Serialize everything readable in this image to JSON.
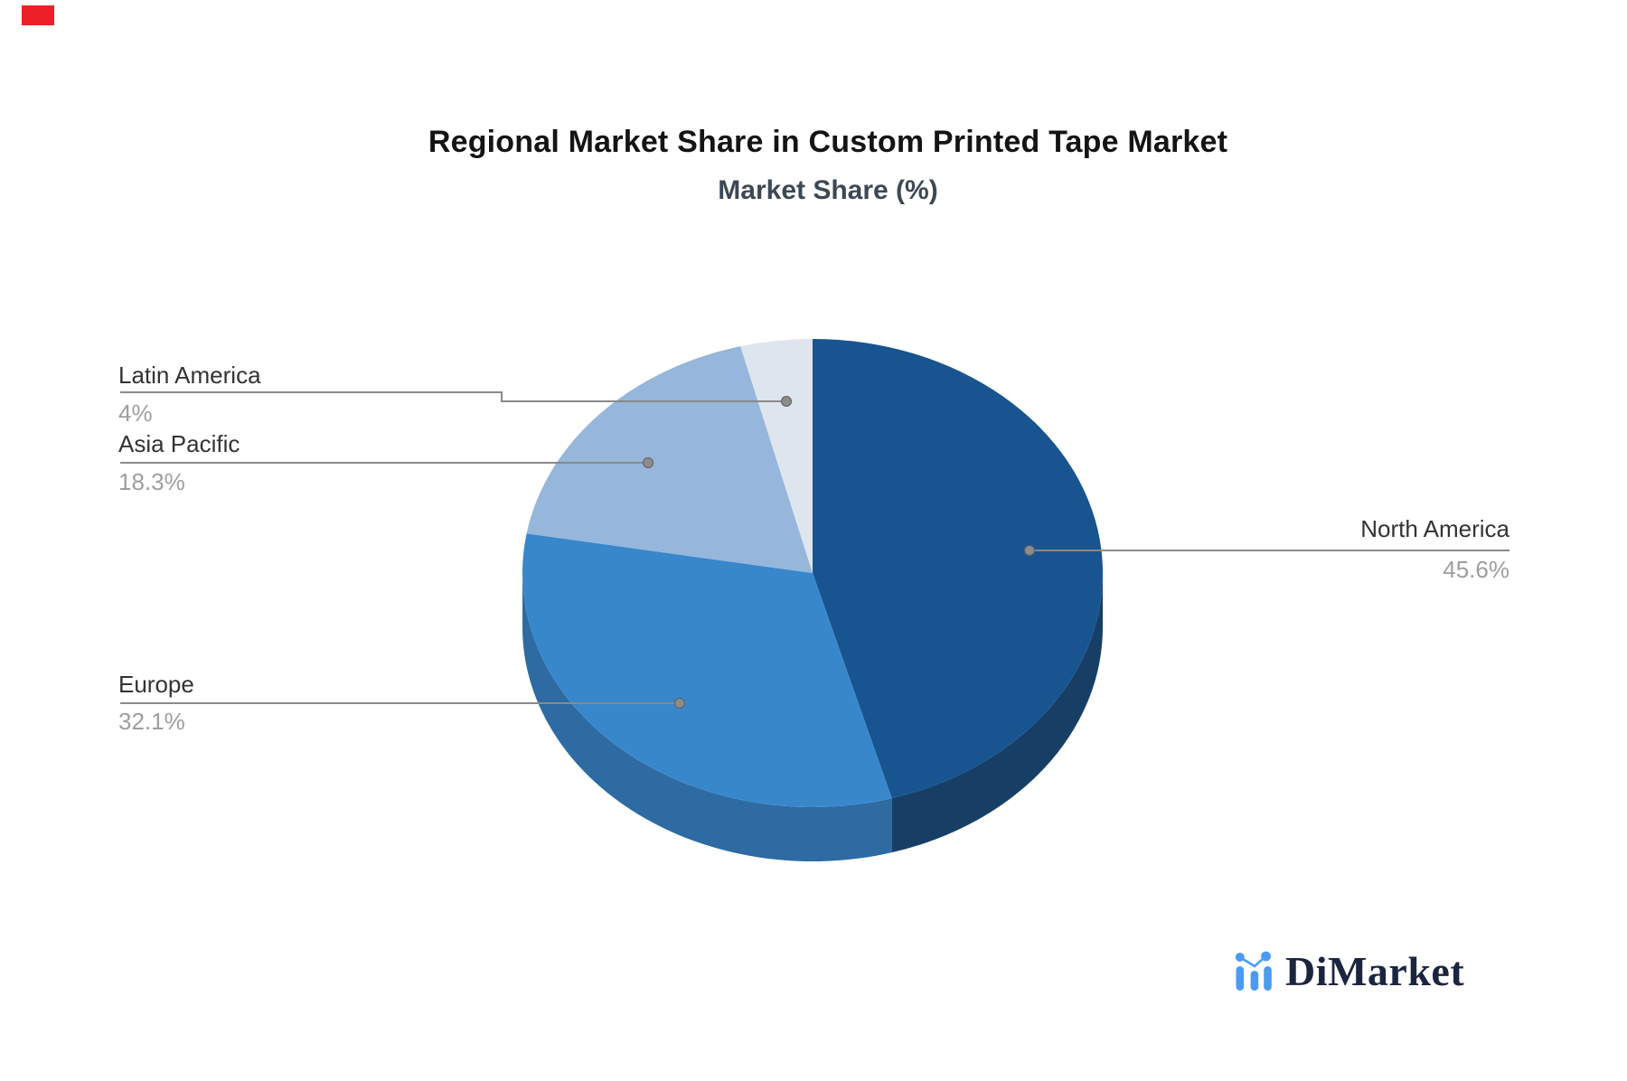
{
  "header": {
    "title": "Regional Market Share in Custom Printed Tape Market",
    "subtitle": "Market Share (%)"
  },
  "chart_data": {
    "type": "pie",
    "title": "Regional Market Share in Custom Printed Tape Market",
    "subtitle": "Market Share (%)",
    "unit": "%",
    "effect": "3d",
    "start_angle_deg": 0,
    "direction": "clockwise",
    "legend_position": "callout-labels",
    "segments": [
      {
        "label": "North America",
        "value": 45.6,
        "display": "45.6%",
        "color": "#185590",
        "side_color": "#173f66"
      },
      {
        "label": "Europe",
        "value": 32.1,
        "display": "32.1%",
        "color": "#3987cb",
        "side_color": "#2d6ba2"
      },
      {
        "label": "Asia Pacific",
        "value": 18.3,
        "display": "18.3%",
        "color": "#96b6db",
        "side_color": "#7d9cc0"
      },
      {
        "label": "Latin America",
        "value": 4.0,
        "display": "4%",
        "color": "#dee5ee",
        "side_color": "#bcc6d4"
      }
    ],
    "colors": {
      "leader_line": "#8a8a8a",
      "leader_dot_fill": "#8c8c8c",
      "leader_dot_stroke": "#5e5e5e",
      "label_text": "#333333",
      "value_text": "#9e9e9e",
      "title_text": "#141414",
      "subtitle_text": "#3e4854"
    }
  },
  "branding": {
    "logo_text": "DiMarket",
    "logo_icon": "bar-chart-with-dots-icon",
    "logo_icon_color": "#4a9cf2",
    "logo_text_color": "#1b2540"
  },
  "misc": {
    "corner_mark_color": "#ec1f27"
  }
}
